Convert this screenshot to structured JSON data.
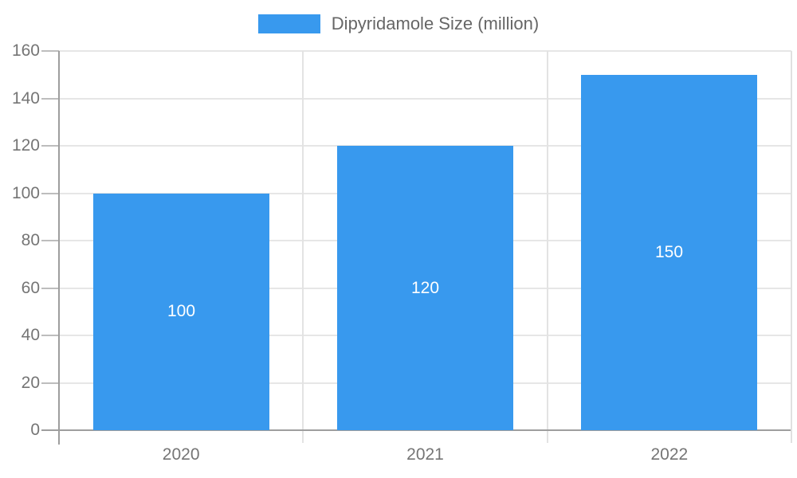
{
  "chart_data": {
    "type": "bar",
    "title": "",
    "legend_label": "Dipyridamole Size (million)",
    "legend_position": "top",
    "categories": [
      "2020",
      "2021",
      "2022"
    ],
    "series": [
      {
        "name": "Dipyridamole Size (million)",
        "values": [
          100,
          120,
          150
        ]
      }
    ],
    "value_labels": [
      "100",
      "120",
      "150"
    ],
    "ylim": [
      0,
      160
    ],
    "yticks": [
      0,
      20,
      40,
      60,
      80,
      100,
      120,
      140,
      160
    ],
    "xlabel": "",
    "ylabel": "",
    "grid": true
  },
  "colors": {
    "bar": "#3899ee",
    "bar_value_text": "#ffffff",
    "axis_line": "#9e9e9e",
    "tick_mark": "#bdbdbd",
    "gridline": "#e6e6e6",
    "boundary_line": "#e3e3e3",
    "right_border": "#e0e0e0",
    "axis_label_text": "#757575",
    "legend_text": "#666666",
    "background": "#ffffff"
  }
}
